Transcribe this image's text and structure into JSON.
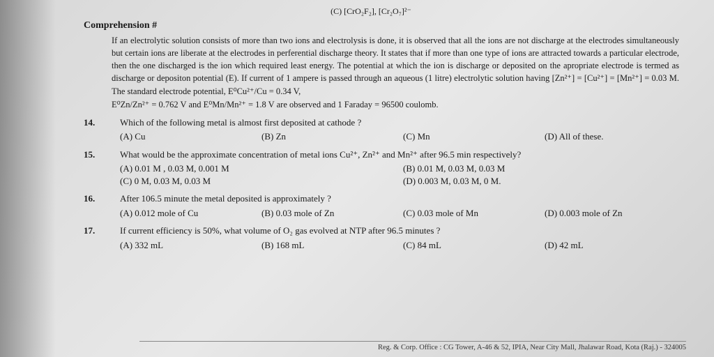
{
  "top_option": "(C) [CrO₂F₂], [Cr₂O₇]²⁻",
  "comprehension_title": "Comprehension #",
  "passage": "If an electrolytic solution consists of more than two ions and electrolysis is done, it is observed that all the ions are not discharge at the electrodes simultaneously but certain ions are liberate at the electrodes in perferential discharge theory. It states that if more than one type of ions are attracted towards a particular electrode, then the one discharged is the ion which required least energy. The potential at which the ion is discharge or deposited on the apropriate electrode is termed as discharge or depositon potential (E). If current of 1 ampere is passed through an aqueous (1 litre) electrolytic solution having [Zn²⁺] = [Cu²⁺] = [Mn²⁺] = 0.03 M. The standard electrode potential, E⁰Cu²⁺/Cu = 0.34 V,",
  "equation_line": "E⁰Zn/Zn²⁺ = 0.762 V and E⁰Mn/Mn²⁺ = 1.8 V are observed and 1 Faraday = 96500 coulomb.",
  "q14": {
    "num": "14.",
    "text": "Which of the following metal is almost first deposited at cathode ?",
    "a": "(A) Cu",
    "b": "(B) Zn",
    "c": "(C) Mn",
    "d": "(D) All of these."
  },
  "q15": {
    "num": "15.",
    "text": "What would be the approximate concentration of metal ions Cu²⁺, Zn²⁺ and Mn²⁺ after 96.5 min respectively?",
    "a": "(A) 0.01 M , 0.03 M, 0.001 M",
    "b": "(B) 0.01 M, 0.03 M, 0.03 M",
    "c": "(C) 0 M, 0.03 M, 0.03 M",
    "d": "(D) 0.003 M, 0.03 M, 0 M."
  },
  "q16": {
    "num": "16.",
    "text": "After 106.5 minute the metal deposited is approximately ?",
    "a": "(A) 0.012 mole of Cu",
    "b": "(B) 0.03 mole of Zn",
    "c": "(C) 0.03 mole of Mn",
    "d": "(D) 0.003 mole of Zn"
  },
  "q17": {
    "num": "17.",
    "text": "If current efficiency is 50%, what volume of O₂ gas evolved at NTP after 96.5 minutes ?",
    "a": "(A) 332 mL",
    "b": "(B) 168 mL",
    "c": "(C) 84 mL",
    "d": "(D) 42 mL"
  },
  "footer": "Reg. & Corp. Office : CG Tower, A-46 & 52, IPIA, Near City Mall, Jhalawar Road, Kota (Raj.) - 324005"
}
